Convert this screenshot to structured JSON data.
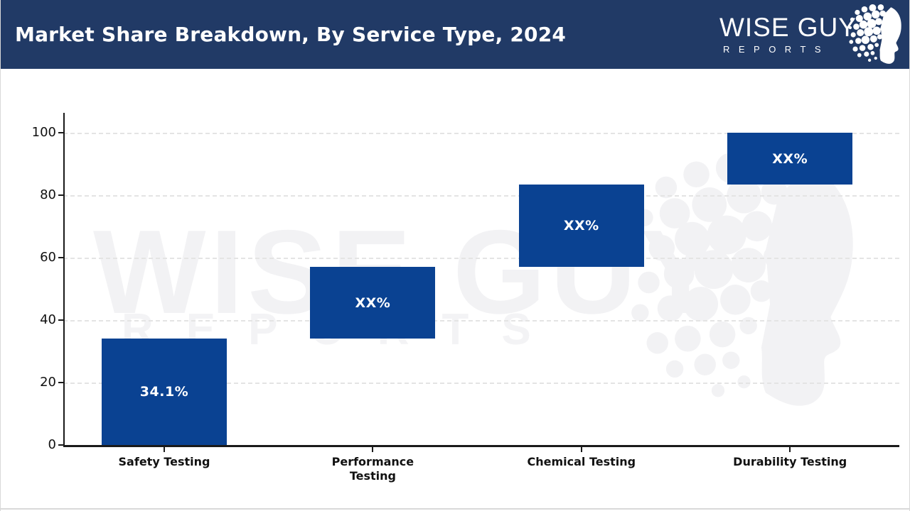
{
  "header": {
    "title": "Market Share Breakdown, By Service Type, 2024",
    "bg_color": "#213a66",
    "logo": {
      "line1": "WISE GUY",
      "line2": "REPORTS"
    }
  },
  "watermark": {
    "line1": "WISE GUY",
    "line2": "REPORTS"
  },
  "chart_data": {
    "type": "bar",
    "subtype": "waterfall",
    "title": "Market Share Breakdown, By Service Type, 2024",
    "xlabel": "",
    "ylabel": "",
    "categories": [
      "Safety Testing",
      "Performance Testing",
      "Chemical Testing",
      "Durability Testing"
    ],
    "category_label_lines": [
      [
        "Safety Testing"
      ],
      [
        "Performance",
        "Testing"
      ],
      [
        "Chemical Testing"
      ],
      [
        "Durability Testing"
      ]
    ],
    "segments": [
      {
        "category": "Safety Testing",
        "start": 0,
        "end": 34.1,
        "label": "34.1%"
      },
      {
        "category": "Performance Testing",
        "start": 34.1,
        "end": 57,
        "label": "XX%"
      },
      {
        "category": "Chemical Testing",
        "start": 57,
        "end": 83.4,
        "label": "XX%"
      },
      {
        "category": "Durability Testing",
        "start": 83.4,
        "end": 100,
        "label": "XX%"
      }
    ],
    "bar_labels": [
      "34.1%",
      "XX%",
      "XX%",
      "XX%"
    ],
    "y_ticks": [
      0,
      20,
      40,
      60,
      80,
      100
    ],
    "ylim": [
      0,
      106
    ],
    "grid": "dashed-horizontal",
    "legend": "none",
    "bar_color": "#0a4292",
    "bar_label_color": "#ffffff",
    "axis_color": "#1a1a1a",
    "gridline_color": "#e4e4e4"
  }
}
